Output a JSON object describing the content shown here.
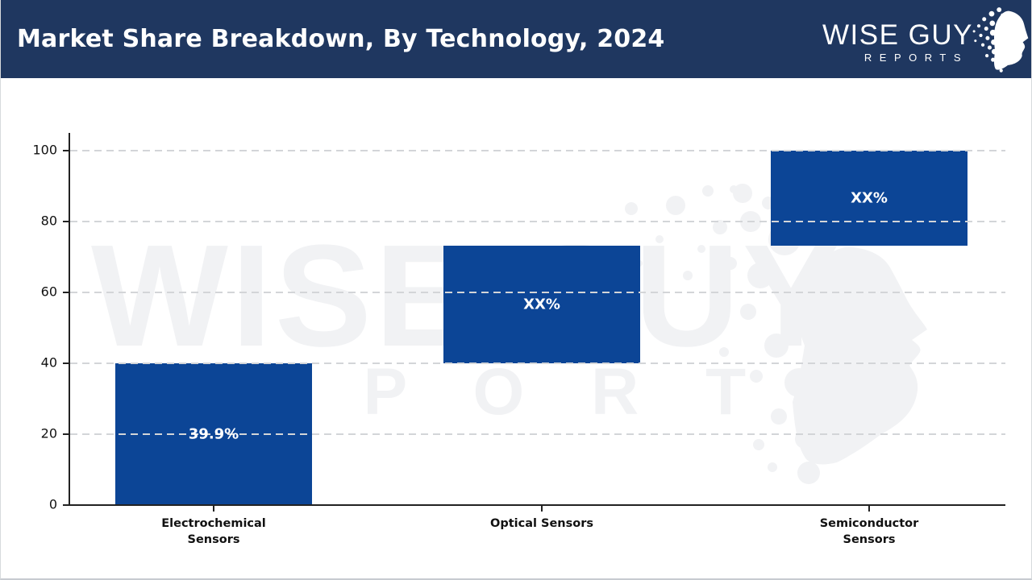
{
  "header": {
    "title": "Market Share Breakdown, By Technology, 2024",
    "logo": {
      "name": "WISE GUY",
      "sub": "REPORTS"
    }
  },
  "watermark": {
    "name": "WISE GUY",
    "sub": "R E P O R T S"
  },
  "chart_data": {
    "type": "bar",
    "subtype": "floating-waterfall",
    "title": "Market Share Breakdown, By Technology, 2024",
    "categories": [
      "Electrochemical Sensors",
      "Optical Sensors",
      "Semiconductor Sensors"
    ],
    "bars": [
      {
        "category_lines": [
          "Electrochemical",
          "Sensors"
        ],
        "start": 0,
        "end": 39.9,
        "label": "39.9%"
      },
      {
        "category_lines": [
          "Optical Sensors"
        ],
        "start": 39.9,
        "end": 73.2,
        "label": "XX%"
      },
      {
        "category_lines": [
          "Semiconductor",
          "Sensors"
        ],
        "start": 73.2,
        "end": 100,
        "label": "XX%"
      }
    ],
    "xlabel": "",
    "ylabel": "",
    "ylim": [
      0,
      100
    ],
    "yticks": [
      0,
      20,
      40,
      60,
      80,
      100
    ],
    "grid": "horizontal dashed, drawn above bars",
    "legend": "none",
    "bar_color": "#0c4596",
    "bar_label_color": "#ffffff",
    "header_color": "#1f3760",
    "watermark_color": "#f1f2f4"
  }
}
